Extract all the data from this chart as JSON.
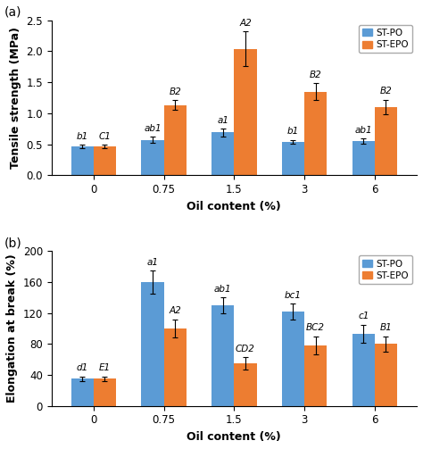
{
  "categories": [
    "0",
    "0.75",
    "1.5",
    "3",
    "6"
  ],
  "panel_a": {
    "ylabel": "Tensile strength (MPa)",
    "xlabel": "Oil content (%)",
    "ylim": [
      0,
      2.5
    ],
    "yticks": [
      0,
      0.5,
      1.0,
      1.5,
      2.0,
      2.5
    ],
    "stpo_values": [
      0.46,
      0.57,
      0.69,
      0.54,
      0.55
    ],
    "stepo_values": [
      0.46,
      1.13,
      2.04,
      1.35,
      1.1
    ],
    "stpo_errors": [
      0.03,
      0.05,
      0.06,
      0.03,
      0.04
    ],
    "stepo_errors": [
      0.03,
      0.08,
      0.28,
      0.14,
      0.12
    ],
    "stpo_labels": [
      "b1",
      "ab1",
      "a1",
      "b1",
      "ab1"
    ],
    "stepo_labels": [
      "C1",
      "B2",
      "A2",
      "B2",
      "B2"
    ]
  },
  "panel_b": {
    "ylabel": "Elongation at break (%)",
    "xlabel": "Oil content (%)",
    "ylim": [
      0,
      200
    ],
    "yticks": [
      0,
      40,
      80,
      120,
      160,
      200
    ],
    "stpo_values": [
      35,
      160,
      130,
      122,
      93
    ],
    "stepo_values": [
      35,
      100,
      55,
      78,
      80
    ],
    "stpo_errors": [
      3,
      15,
      10,
      10,
      12
    ],
    "stepo_errors": [
      3,
      12,
      8,
      12,
      10
    ],
    "stpo_labels": [
      "d1",
      "a1",
      "ab1",
      "bc1",
      "c1"
    ],
    "stepo_labels": [
      "E1",
      "A2",
      "CD2",
      "BC2",
      "B1"
    ]
  },
  "color_stpo": "#5B9BD5",
  "color_stepo": "#ED7D31",
  "legend_labels": [
    "ST-PO",
    "ST-EPO"
  ],
  "bar_width": 0.32,
  "label_fontsize": 7.5,
  "axis_label_fontsize": 9,
  "tick_fontsize": 8.5
}
